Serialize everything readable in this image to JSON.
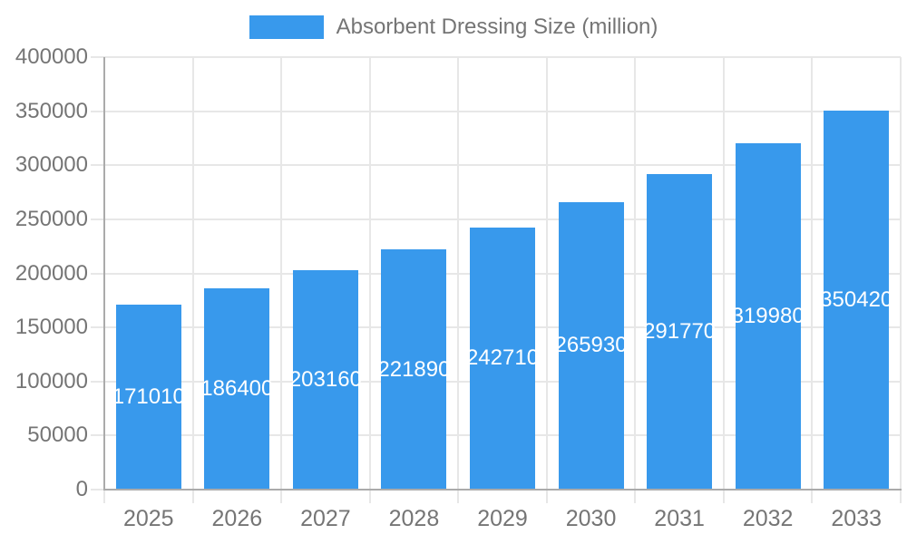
{
  "colors": {
    "bar": "#3899ec",
    "grid": "#e7e7e7",
    "axis": "#ababab",
    "label_text": "#757575",
    "bar_value_text": "#ffffff",
    "background": "#ffffff"
  },
  "legend": {
    "label": "Absorbent Dressing Size (million)",
    "swatch_icon": "blue-rect-swatch"
  },
  "chart_data": {
    "type": "bar",
    "title": "Absorbent Dressing Size (million)",
    "categories": [
      "2025",
      "2026",
      "2027",
      "2028",
      "2029",
      "2030",
      "2031",
      "2032",
      "2033"
    ],
    "values": [
      171010,
      186400,
      203160,
      221890,
      242710,
      265930,
      291770,
      319980,
      350420
    ],
    "data_labels": [
      "171010",
      "186400",
      "203160",
      "221890",
      "242710",
      "265930",
      "291770",
      "319980",
      "350420"
    ],
    "series_name": "Absorbent Dressing Size (million)",
    "xlabel": "",
    "ylabel": "",
    "ylim": [
      0,
      400000
    ],
    "ytick_step": 50000,
    "ytick_labels": [
      "0",
      "50000",
      "100000",
      "150000",
      "200000",
      "250000",
      "300000",
      "350000",
      "400000"
    ],
    "grid": "both",
    "legend_position": "top-center",
    "data_label_position": "center-of-bar"
  }
}
